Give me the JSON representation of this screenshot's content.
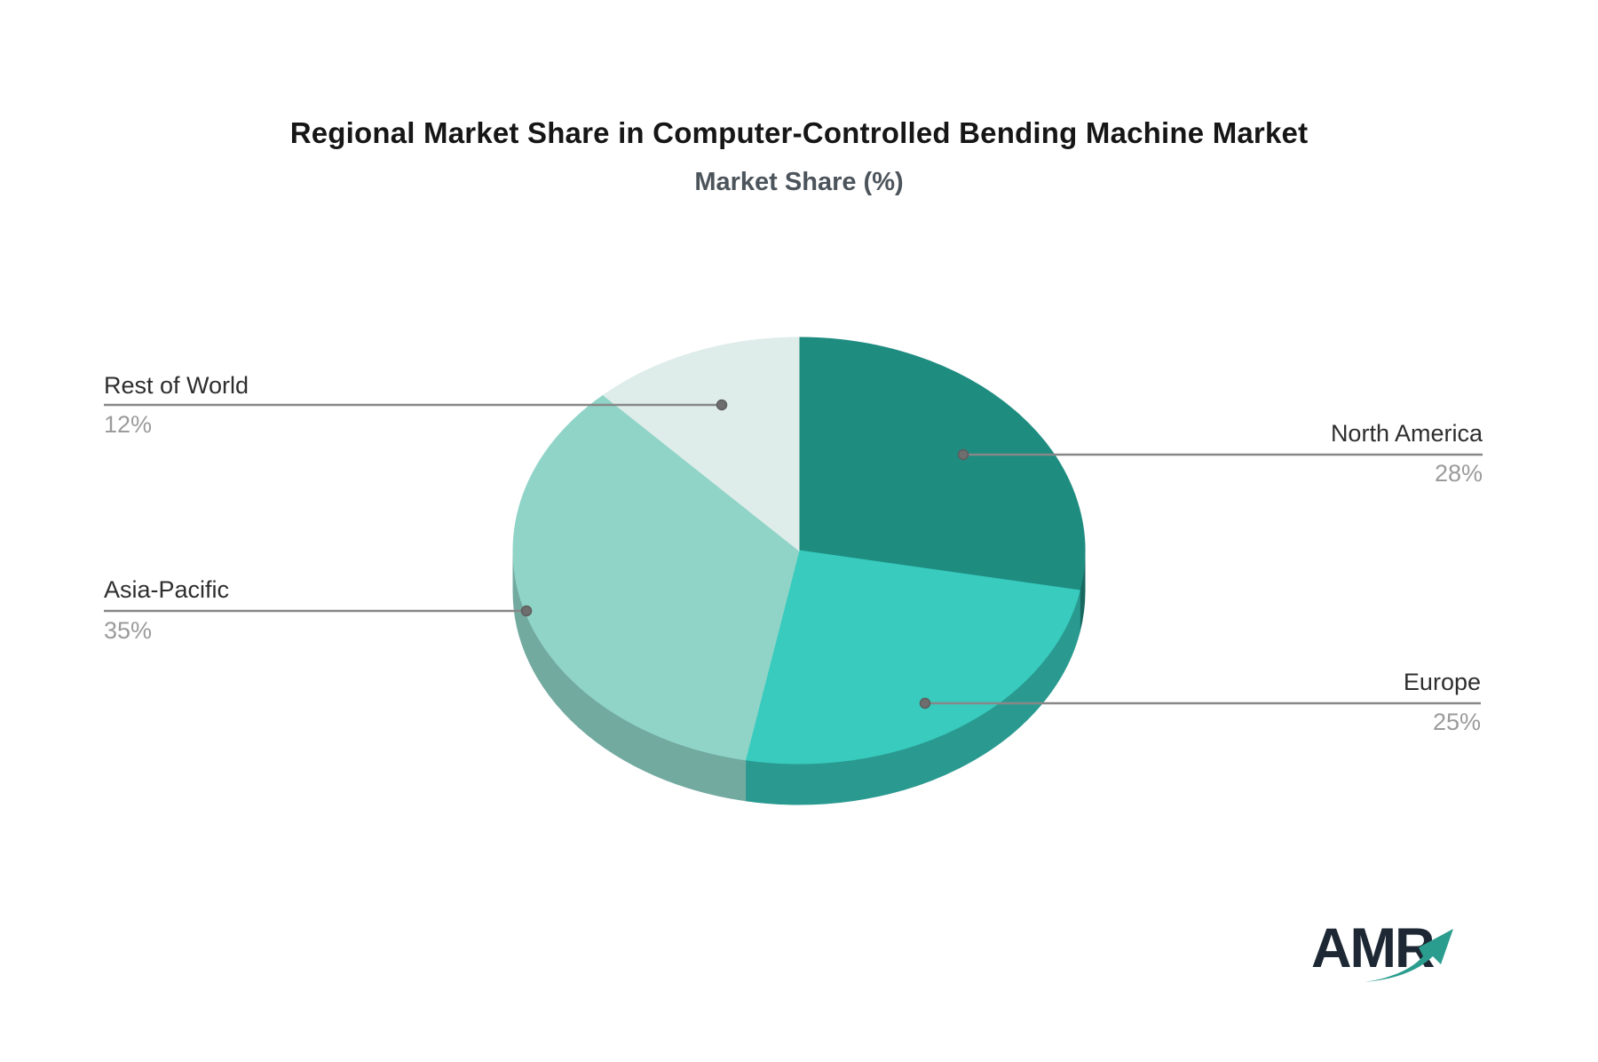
{
  "page": {
    "background": "#ffffff"
  },
  "logo": {
    "text": "AMR",
    "text_color": "#1d2834",
    "arrow_color": "#2b9d8f"
  },
  "chart_data": {
    "type": "pie",
    "style": "3d",
    "title": "Regional Market Share in Computer-Controlled Bending Machine Market",
    "subtitle": "Market Share (%)",
    "unit": "%",
    "start_angle": "top",
    "direction": "clockwise",
    "categories": [
      "North America",
      "Europe",
      "Asia-Pacific",
      "Rest of World"
    ],
    "values": [
      28,
      25,
      35,
      12
    ],
    "slices": [
      {
        "label": "North America",
        "value": 28,
        "value_label": "28%",
        "color": "#1f8c80",
        "side_color": "#186a61"
      },
      {
        "label": "Europe",
        "value": 25,
        "value_label": "25%",
        "color": "#38cbbe",
        "side_color": "#2a9a90"
      },
      {
        "label": "Asia-Pacific",
        "value": 35,
        "value_label": "35%",
        "color": "#90d4c8",
        "side_color": "#73aaa0"
      },
      {
        "label": "Rest of World",
        "value": 12,
        "value_label": "12%",
        "color": "#dfedea",
        "side_color": "#b2bdbb"
      }
    ],
    "leader_line_color": "#878787",
    "leader_dot_color": "#6e6e6e",
    "label_color": "#2e2e2e",
    "value_color": "#9b9b9b",
    "legend": "none",
    "grid": "off"
  }
}
